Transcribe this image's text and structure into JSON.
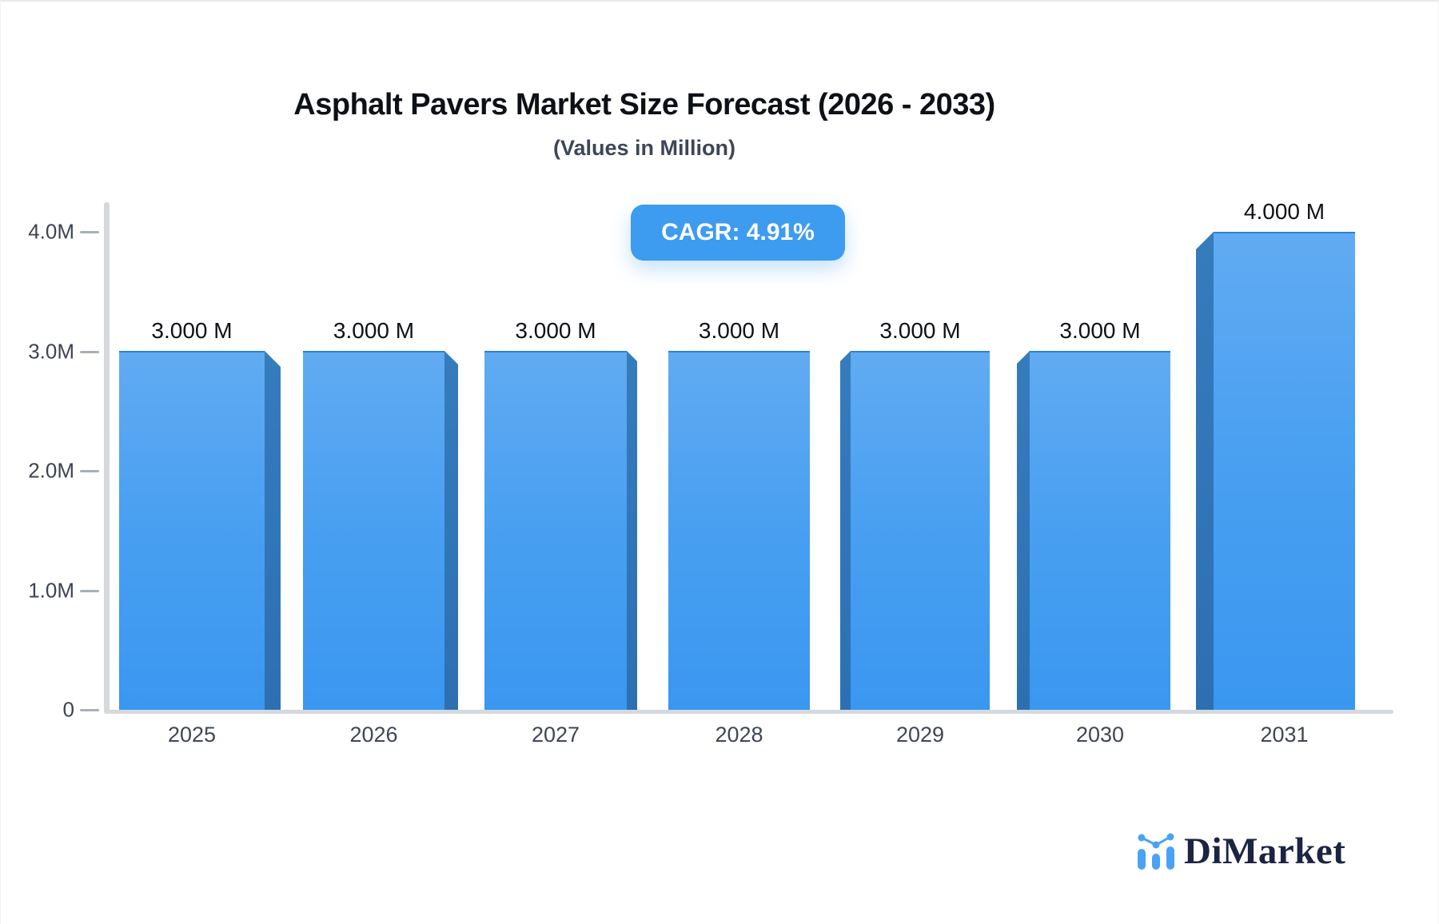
{
  "title": "Asphalt Pavers Market Size Forecast (2026 - 2033)",
  "subtitle": "(Values in Million)",
  "badge": {
    "label": "CAGR: 4.91%"
  },
  "brand": {
    "name": "DiMarket"
  },
  "colors": {
    "accent": "#3D9BF0",
    "bar_top": "#61ABF2",
    "bar_bottom": "#3A97F0",
    "bar_side": "#2F74B6",
    "axis": "#D5D8DD",
    "title_text": "#0D1117",
    "logo_navy": "#1B2441",
    "logo_blue": "#4AA2F5"
  },
  "chart_data": {
    "type": "bar",
    "title": "Asphalt Pavers Market Size Forecast (2026 - 2033)",
    "subtitle": "(Values in Million)",
    "xlabel": "",
    "ylabel": "",
    "categories": [
      "2025",
      "2026",
      "2027",
      "2028",
      "2029",
      "2030",
      "2031"
    ],
    "values": [
      3.0,
      3.0,
      3.0,
      3.0,
      3.0,
      3.0,
      4.0
    ],
    "value_labels": [
      "3.000 M",
      "3.000 M",
      "3.000 M",
      "3.000 M",
      "3.000 M",
      "3.000 M",
      "4.000 M"
    ],
    "unit": "Million",
    "ylim": [
      0,
      4
    ],
    "yticks": [
      {
        "label": "4.0M",
        "value": 4.0
      },
      {
        "label": "3.0M",
        "value": 3.0
      },
      {
        "label": "2.0M",
        "value": 2.0
      },
      {
        "label": "1.0M",
        "value": 1.0
      },
      {
        "label": "0",
        "value": 0.0
      }
    ],
    "grid": false,
    "legend": false,
    "annotations": [
      "CAGR: 4.91%"
    ]
  }
}
